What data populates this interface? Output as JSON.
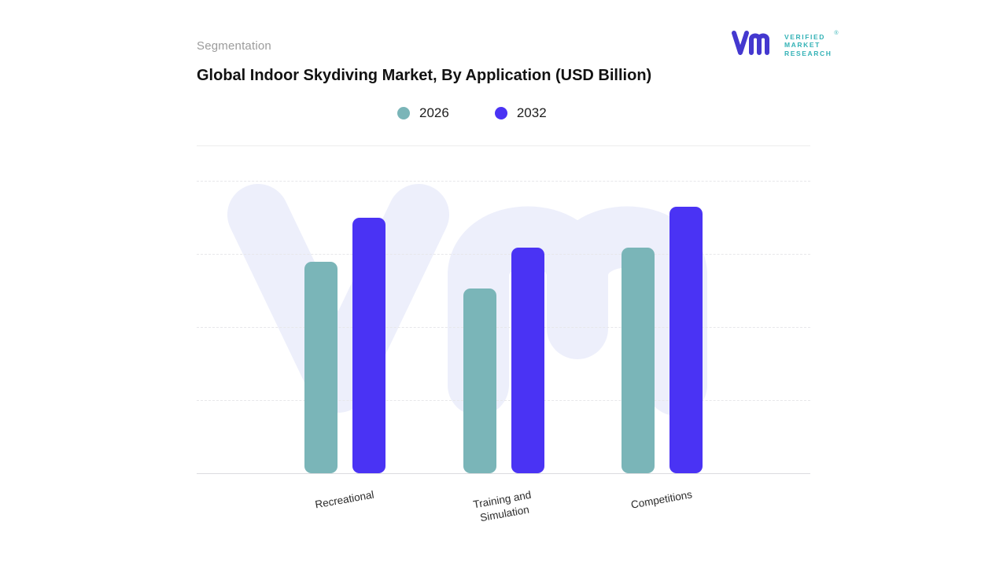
{
  "header": {
    "segmentation_label": "Segmentation",
    "title": "Global Indoor Skydiving Market, By Application (USD Billion)"
  },
  "brand": {
    "lines": [
      "VERIFIED",
      "MARKET",
      "RESEARCH"
    ],
    "registered_mark": "®",
    "mark_color": "#4438cf",
    "text_color": "#33b2b6"
  },
  "legend": [
    {
      "label": "2026",
      "color": "#7ab5b8"
    },
    {
      "label": "2032",
      "color": "#4a33f4"
    }
  ],
  "chart_data": {
    "type": "bar",
    "title": "Global Indoor Skydiving Market, By Application (USD Billion)",
    "units": "USD Billion",
    "categories": [
      "Recreational",
      "Training and Simulation",
      "Competitions"
    ],
    "series": [
      {
        "name": "2026",
        "color": "#7ab5b8",
        "values": [
          0.72,
          0.63,
          0.77
        ]
      },
      {
        "name": "2032",
        "color": "#4a33f4",
        "values": [
          0.87,
          0.77,
          0.91
        ]
      }
    ],
    "ylim": [
      0,
      1
    ],
    "xlabel": "",
    "ylabel": "",
    "grid": "dashed-horizontal",
    "legend_position": "top-center"
  },
  "watermark": {
    "name": "vmr-watermark",
    "color": "#edeffb"
  }
}
